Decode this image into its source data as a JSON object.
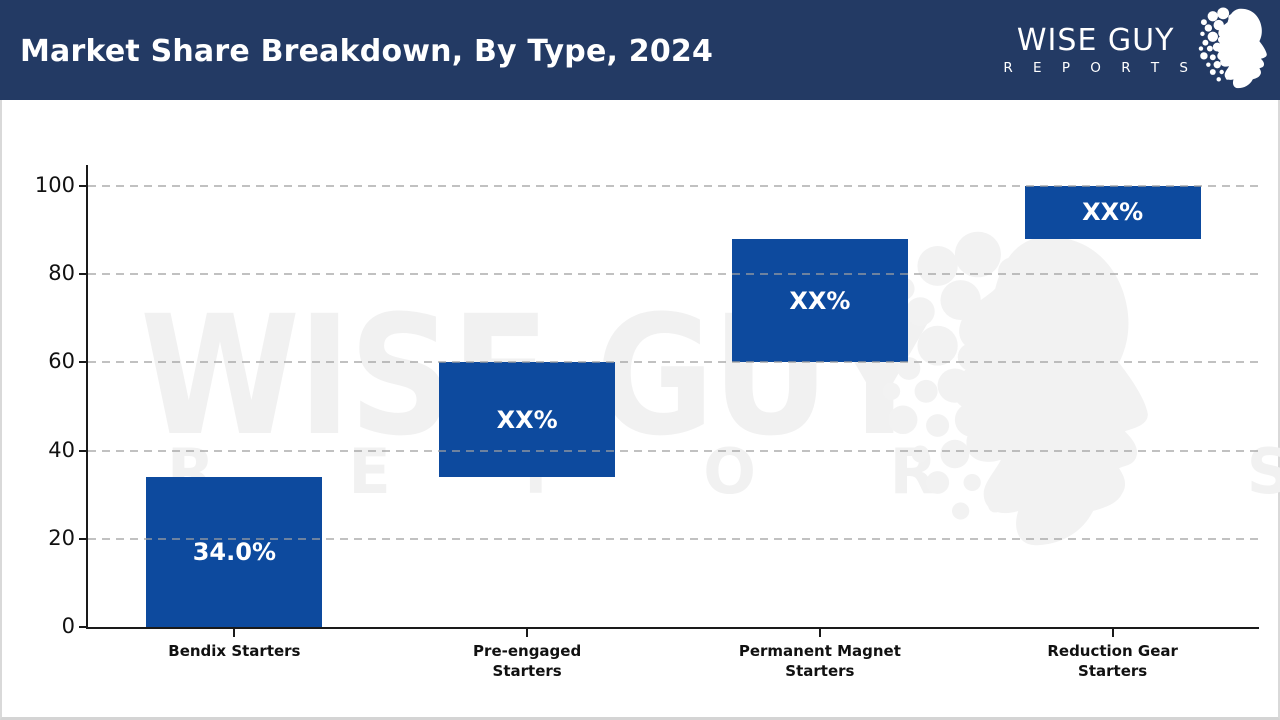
{
  "header": {
    "title": "Market Share Breakdown, By Type, 2024",
    "bg_color": "#233A64",
    "logo": {
      "line1": "WISE GUY",
      "line2": "R E P O R T S"
    }
  },
  "watermark": {
    "line1": "WISE GUY",
    "line2": "R E P O R T S"
  },
  "chart_data": {
    "type": "bar",
    "subtype": "waterfall",
    "title": "Market Share Breakdown, By Type, 2024",
    "categories": [
      "Bendix Starters",
      "Pre-engaged Starters",
      "Permanent Magnet Starters",
      "Reduction Gear Starters"
    ],
    "category_lines": [
      [
        "Bendix Starters"
      ],
      [
        "Pre-engaged",
        "Starters"
      ],
      [
        "Permanent Magnet",
        "Starters"
      ],
      [
        "Reduction Gear",
        "Starters"
      ]
    ],
    "segments": [
      {
        "category": "Bendix Starters",
        "start": 0,
        "end": 34,
        "value": 34,
        "label": "34.0%"
      },
      {
        "category": "Pre-engaged Starters",
        "start": 34,
        "end": 60,
        "value": 26,
        "label": "XX%"
      },
      {
        "category": "Permanent Magnet Starters",
        "start": 60,
        "end": 88,
        "value": 28,
        "label": "XX%"
      },
      {
        "category": "Reduction Gear Starters",
        "start": 88,
        "end": 100,
        "value": 12,
        "label": "XX%"
      }
    ],
    "xlabel": "",
    "ylabel": "",
    "ylim": [
      0,
      100
    ],
    "yticks": [
      0,
      20,
      40,
      60,
      80,
      100
    ],
    "grid": {
      "axis": "y",
      "style": "dashed",
      "color": "#c7c7c7"
    },
    "legend": "none",
    "bar_color": "#0D4A9E",
    "bar_label_color": "#FFFFFF",
    "axis_color": "#1a1a1a"
  }
}
